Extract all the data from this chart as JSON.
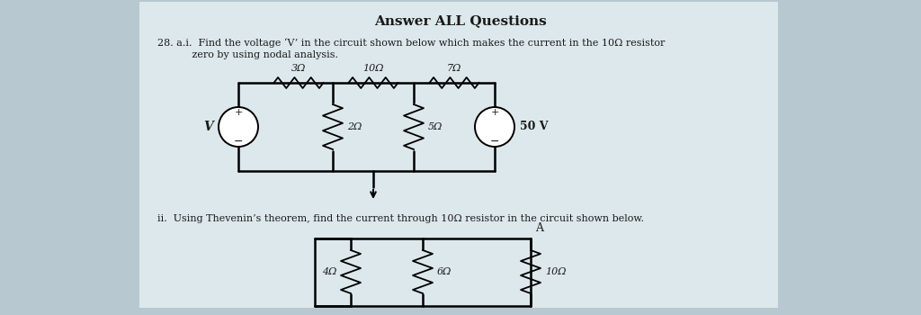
{
  "title": "Answer ALL Questions",
  "bg_color": "#b8c8d0",
  "paper_color": "#dde8ec",
  "text_color": "#1a1a1a",
  "q1_text_line1": "28. a.i.  Find the voltage ‘V’ in the circuit shown below which makes the current in the 10Ω resistor",
  "q1_text_line2": "           zero by using nodal analysis.",
  "q2_text": "ii.  Using Thevenin’s theorem, find the current through 10Ω resistor in the circuit shown below.",
  "circuit1": {
    "top_labels": [
      "3Ω",
      "10Ω",
      "7Ω"
    ],
    "shunt_labels": [
      "2Ω",
      "5Ω"
    ],
    "left_src": "V",
    "right_src": "50 V"
  },
  "circuit2": {
    "labels": [
      "4Ω",
      "6Ω",
      "10Ω"
    ],
    "node": "A"
  }
}
